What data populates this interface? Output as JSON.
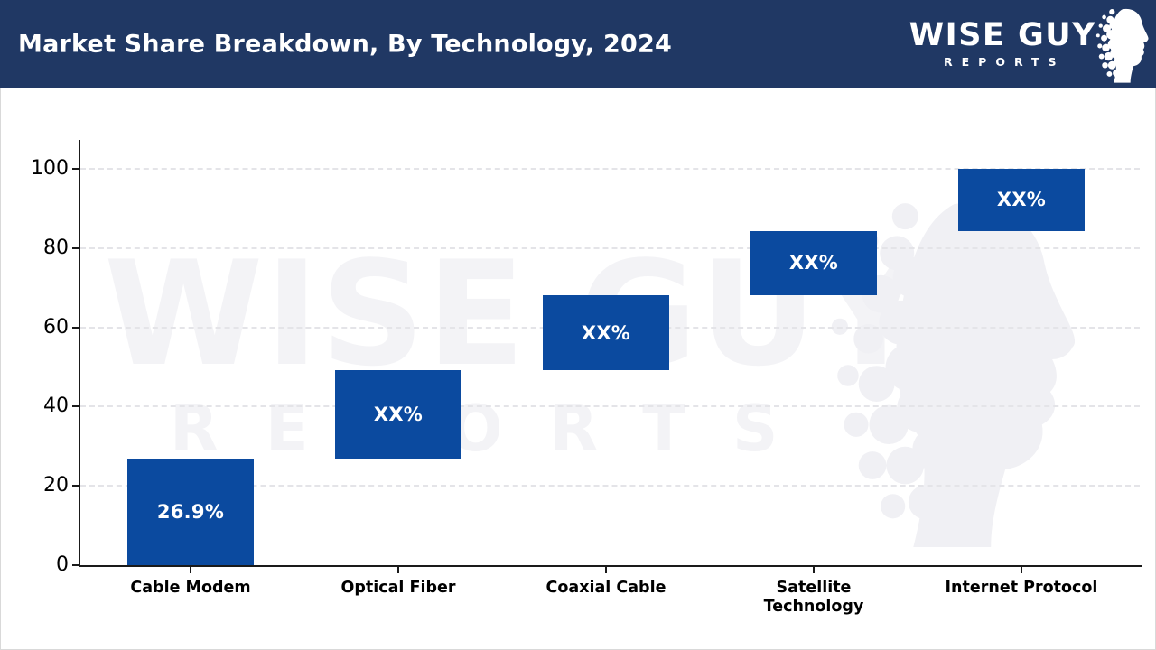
{
  "header": {
    "title": "Market Share Breakdown, By Technology, 2024",
    "bg_color": "#203864",
    "logo": {
      "line1": "WISE GUY",
      "line2": "REPORTS"
    }
  },
  "watermark": {
    "line1": "WISE GUY",
    "line2": "REPORTS"
  },
  "chart_data": {
    "type": "bar",
    "subtype": "floating-waterfall",
    "title": "Market Share Breakdown, By Technology, 2024",
    "categories": [
      "Cable Modem",
      "Optical Fiber",
      "Coaxial Cable",
      "Satellite\nTechnology",
      "Internet Protocol"
    ],
    "segments": [
      {
        "category": "Cable Modem",
        "from": 0,
        "to": 26.9,
        "label": "26.9%"
      },
      {
        "category": "Optical Fiber",
        "from": 26.9,
        "to": 49.2,
        "label": "XX%"
      },
      {
        "category": "Coaxial Cable",
        "from": 49.2,
        "to": 68.1,
        "label": "XX%"
      },
      {
        "category": "Satellite Technology",
        "from": 68.1,
        "to": 84.3,
        "label": "XX%"
      },
      {
        "category": "Internet Protocol",
        "from": 84.3,
        "to": 100,
        "label": "XX%"
      }
    ],
    "bar_color": "#0b4a9f",
    "bar_label_color": "#ffffff",
    "ylim": [
      0,
      100
    ],
    "yticks": [
      0,
      20,
      40,
      60,
      80,
      100
    ],
    "grid": {
      "axis": "y",
      "style": "dashed",
      "color": "#e4e4e8"
    },
    "xlabel": "",
    "ylabel": "",
    "legend": null
  }
}
